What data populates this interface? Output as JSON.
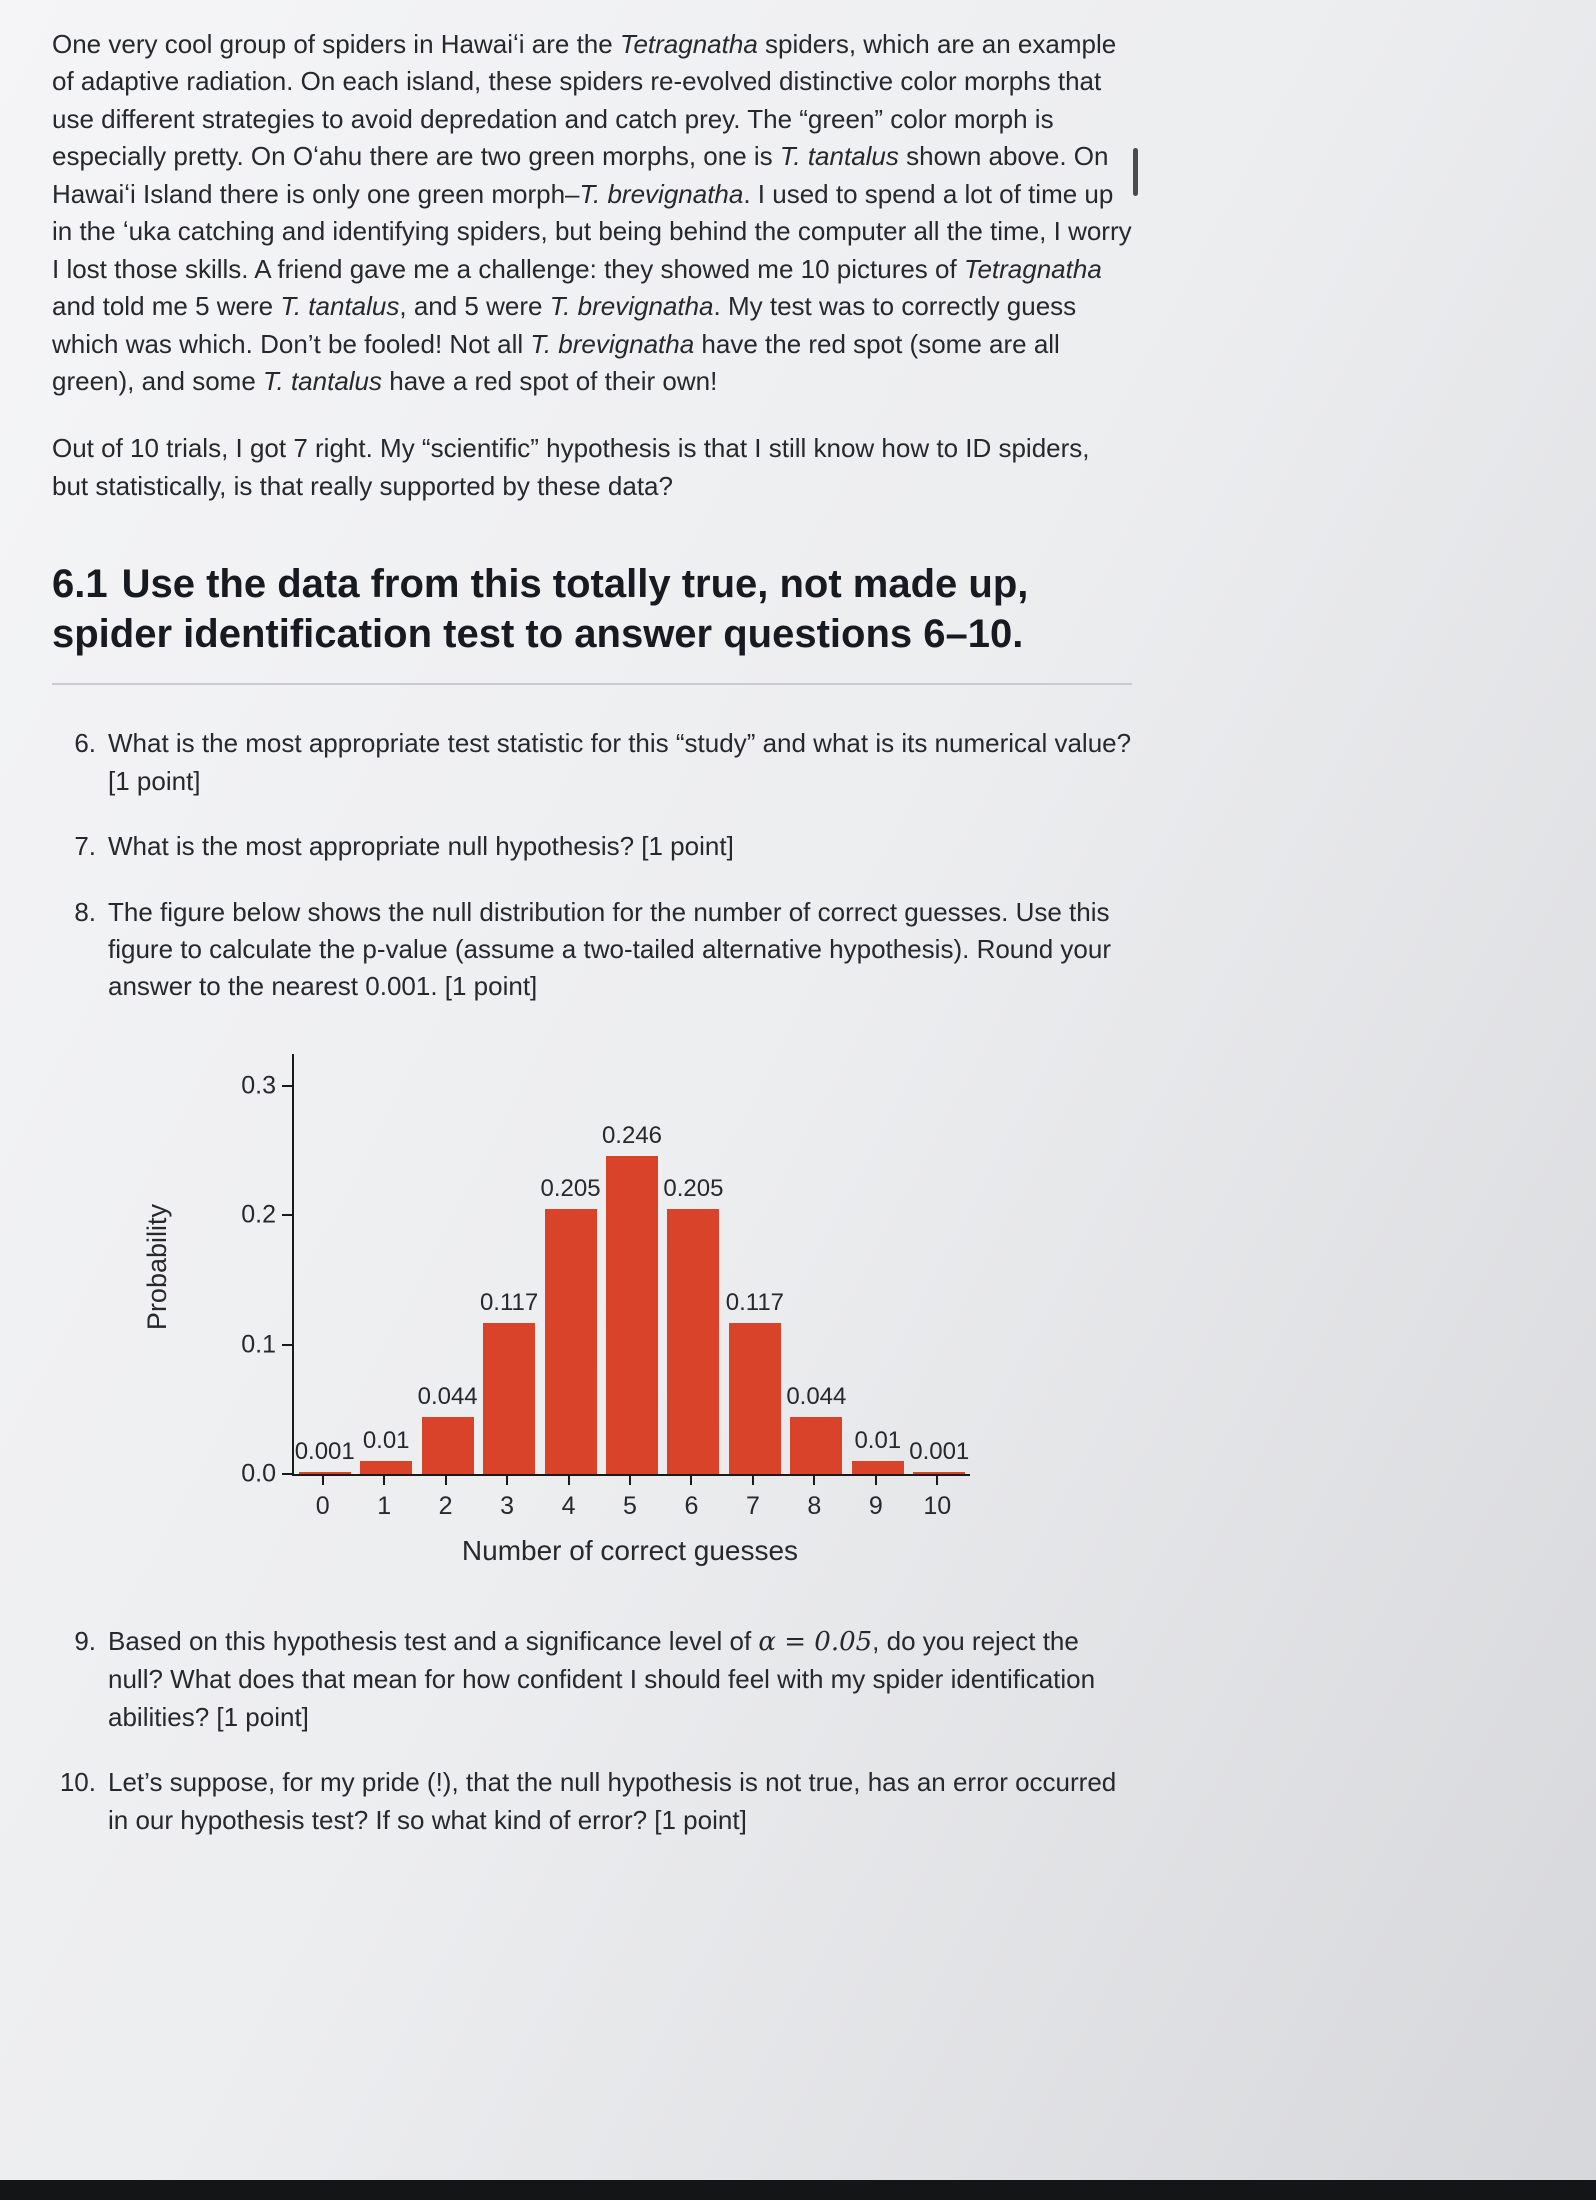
{
  "intro": {
    "para1_segments": [
      {
        "t": "One very cool group of spiders in Hawaiʻi are the "
      },
      {
        "t": "Tetragnatha",
        "s": "i"
      },
      {
        "t": " spiders, which are an example of adaptive radiation. On each island, these spiders re-evolved distinctive color morphs that use different strategies to avoid depredation and catch prey. The “green” color morph is especially pretty. On Oʻahu there are two green morphs, one is "
      },
      {
        "t": "T. tantalus",
        "s": "i"
      },
      {
        "t": " shown above. On Hawaiʻi Island there is only one green morph–"
      },
      {
        "t": "T. brevignatha",
        "s": "i"
      },
      {
        "t": ". I used to spend a lot of time up in the ʻuka catching and identifying spiders, but being behind the computer all the time, I worry I lost those skills. A friend gave me a challenge: they showed me 10 pictures of "
      },
      {
        "t": "Tetragnatha",
        "s": "i"
      },
      {
        "t": " and told me 5 were "
      },
      {
        "t": "T. tantalus",
        "s": "i"
      },
      {
        "t": ", and 5 were "
      },
      {
        "t": "T. brevignatha",
        "s": "i"
      },
      {
        "t": ". My test was to correctly guess which was which. Don’t be fooled! Not all "
      },
      {
        "t": "T. brevignatha",
        "s": "i"
      },
      {
        "t": " have the red spot (some are all green), and some "
      },
      {
        "t": "T. tantalus",
        "s": "i"
      },
      {
        "t": " have a red spot of their own!"
      }
    ],
    "para2": "Out of 10 trials, I got 7 right. My “scientific” hypothesis is that I still know how to ID spiders, but statistically, is that really supported by these data?"
  },
  "section": {
    "number": "6.1",
    "title": "Use the data from this totally true, not made up, spider identification test to answer questions 6–10."
  },
  "questions": [
    {
      "num": "6.",
      "segments": [
        {
          "t": "What is the most appropriate test statistic for this “study” and what is its numerical value? [1 point]"
        }
      ]
    },
    {
      "num": "7.",
      "segments": [
        {
          "t": "What is the most appropriate null hypothesis? [1 point]"
        }
      ]
    },
    {
      "num": "8.",
      "segments": [
        {
          "t": "The figure below shows the null distribution for the number of correct guesses. Use this figure to calculate the p-value (assume a two-tailed alternative hypothesis). Round your answer to the nearest 0.001. [1 point]"
        }
      ]
    },
    {
      "num": "9.",
      "segments": [
        {
          "t": "Based on this hypothesis test and a significance level of "
        },
        {
          "t": "α = 0.05",
          "s": "m"
        },
        {
          "t": ", do you reject the null? What does that mean for how confident I should feel with my spider identification abilities? [1 point]"
        }
      ]
    },
    {
      "num": "10.",
      "segments": [
        {
          "t": "Let’s suppose, for my pride (!), that the null hypothesis is not true, has an error occurred in our hypothesis test? If so what kind of error? [1 point]"
        }
      ]
    }
  ],
  "chart_data": {
    "type": "bar",
    "title": "",
    "xlabel": "Number of correct guesses",
    "ylabel": "Probability",
    "categories": [
      "0",
      "1",
      "2",
      "3",
      "4",
      "5",
      "6",
      "7",
      "8",
      "9",
      "10"
    ],
    "values": [
      0.001,
      0.01,
      0.044,
      0.117,
      0.205,
      0.246,
      0.205,
      0.117,
      0.044,
      0.01,
      0.001
    ],
    "bar_labels": [
      "0.001",
      "0.01",
      "0.044",
      "0.117",
      "0.205",
      "0.246",
      "0.205",
      "0.117",
      "0.044",
      "0.01",
      "0.001"
    ],
    "ylim": [
      0,
      0.325
    ],
    "yticks": [
      0,
      0.1,
      0.2,
      0.3
    ],
    "ytick_labels": [
      "0.0",
      "0.1",
      "0.2",
      "0.3"
    ],
    "bar_color": "#d8432a",
    "grid": false,
    "legend": "none"
  }
}
